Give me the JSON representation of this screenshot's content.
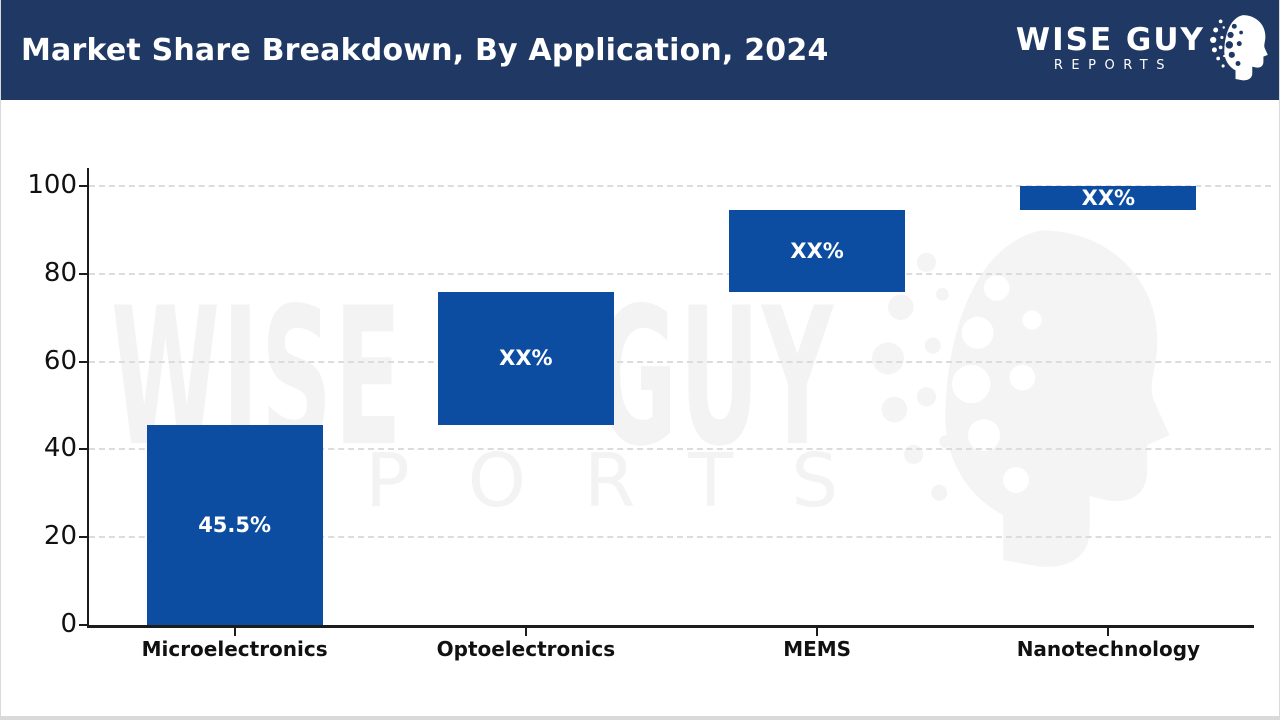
{
  "header": {
    "title": "Market Share Breakdown, By Application, 2024",
    "bg_color": "#1f3864",
    "logo": {
      "wordmark": "WISE GUY",
      "subtitle": "REPORTS"
    }
  },
  "watermark": {
    "line1": "WISE GUY",
    "line2": "REPORTS"
  },
  "chart_data": {
    "type": "bar",
    "subtype": "waterfall",
    "title": "Market Share Breakdown, By Application, 2024",
    "xlabel": "",
    "ylabel": "",
    "ylim": [
      0,
      100
    ],
    "yticks": [
      0,
      20,
      40,
      60,
      80,
      100
    ],
    "grid": "horizontal-dashed",
    "legend": "none",
    "bar_color": "#0d4da1",
    "bar_label_color": "#ffffff",
    "categories": [
      "Microelectronics",
      "Optoelectronics",
      "MEMS",
      "Nanotechnology"
    ],
    "segments": [
      {
        "category": "Microelectronics",
        "start": 0,
        "end": 45.5,
        "label": "45.5%"
      },
      {
        "category": "Optoelectronics",
        "start": 45.5,
        "end": 75.8,
        "label": "XX%"
      },
      {
        "category": "MEMS",
        "start": 75.8,
        "end": 94.5,
        "label": "XX%"
      },
      {
        "category": "Nanotechnology",
        "start": 94.5,
        "end": 100,
        "label": "XX%"
      }
    ]
  }
}
